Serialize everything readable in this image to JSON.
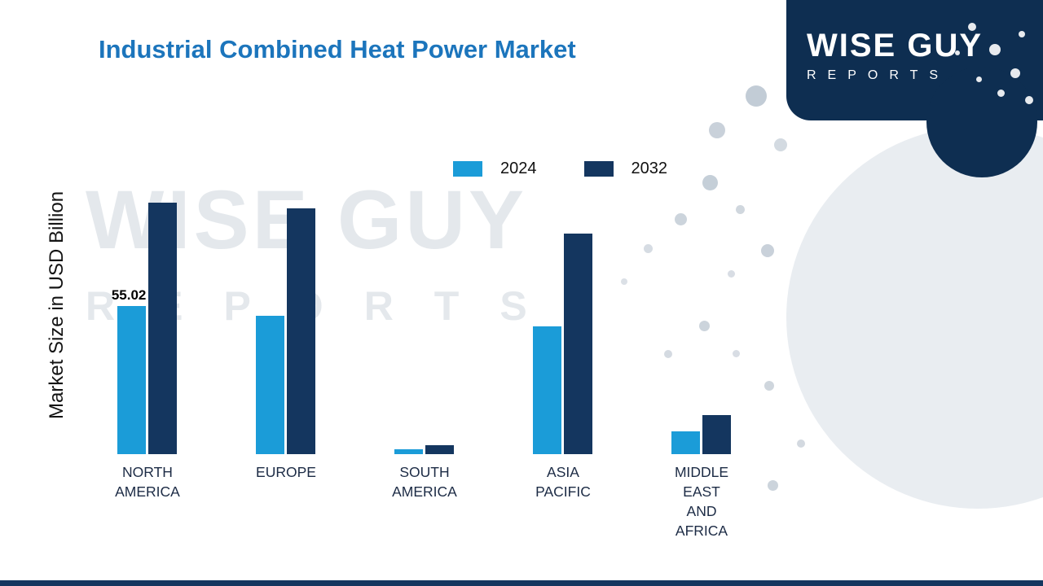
{
  "page": {
    "title": "Industrial Combined Heat Power Market",
    "title_color": "#1c75bc",
    "bottom_bar_color": "#14365f"
  },
  "logo": {
    "line1": "WISE GUY",
    "line2": "REPORTS",
    "bg_color": "#0e2e51"
  },
  "watermark": {
    "line1": "WISE GUY",
    "line2": "REPORTS"
  },
  "chart_data": {
    "type": "bar",
    "title": "Industrial Combined Heat Power Market",
    "ylabel": "Market Size in USD Billion",
    "xlabel": "",
    "ylim": [
      0,
      100
    ],
    "grid": false,
    "legend_position": "top",
    "categories": [
      "NORTH AMERICA",
      "EUROPE",
      "SOUTH AMERICA",
      "ASIA PACIFIC",
      "MIDDLE EAST AND AFRICA"
    ],
    "series": [
      {
        "name": "2024",
        "color": "#1b9cd8",
        "values": [
          55.02,
          51.5,
          1.8,
          47.5,
          8.5
        ]
      },
      {
        "name": "2032",
        "color": "#14365f",
        "values": [
          93.5,
          91.5,
          3.2,
          82,
          14.5
        ]
      }
    ],
    "annotations": [
      {
        "series": "2024",
        "category": "NORTH AMERICA",
        "text": "55.02"
      }
    ]
  }
}
